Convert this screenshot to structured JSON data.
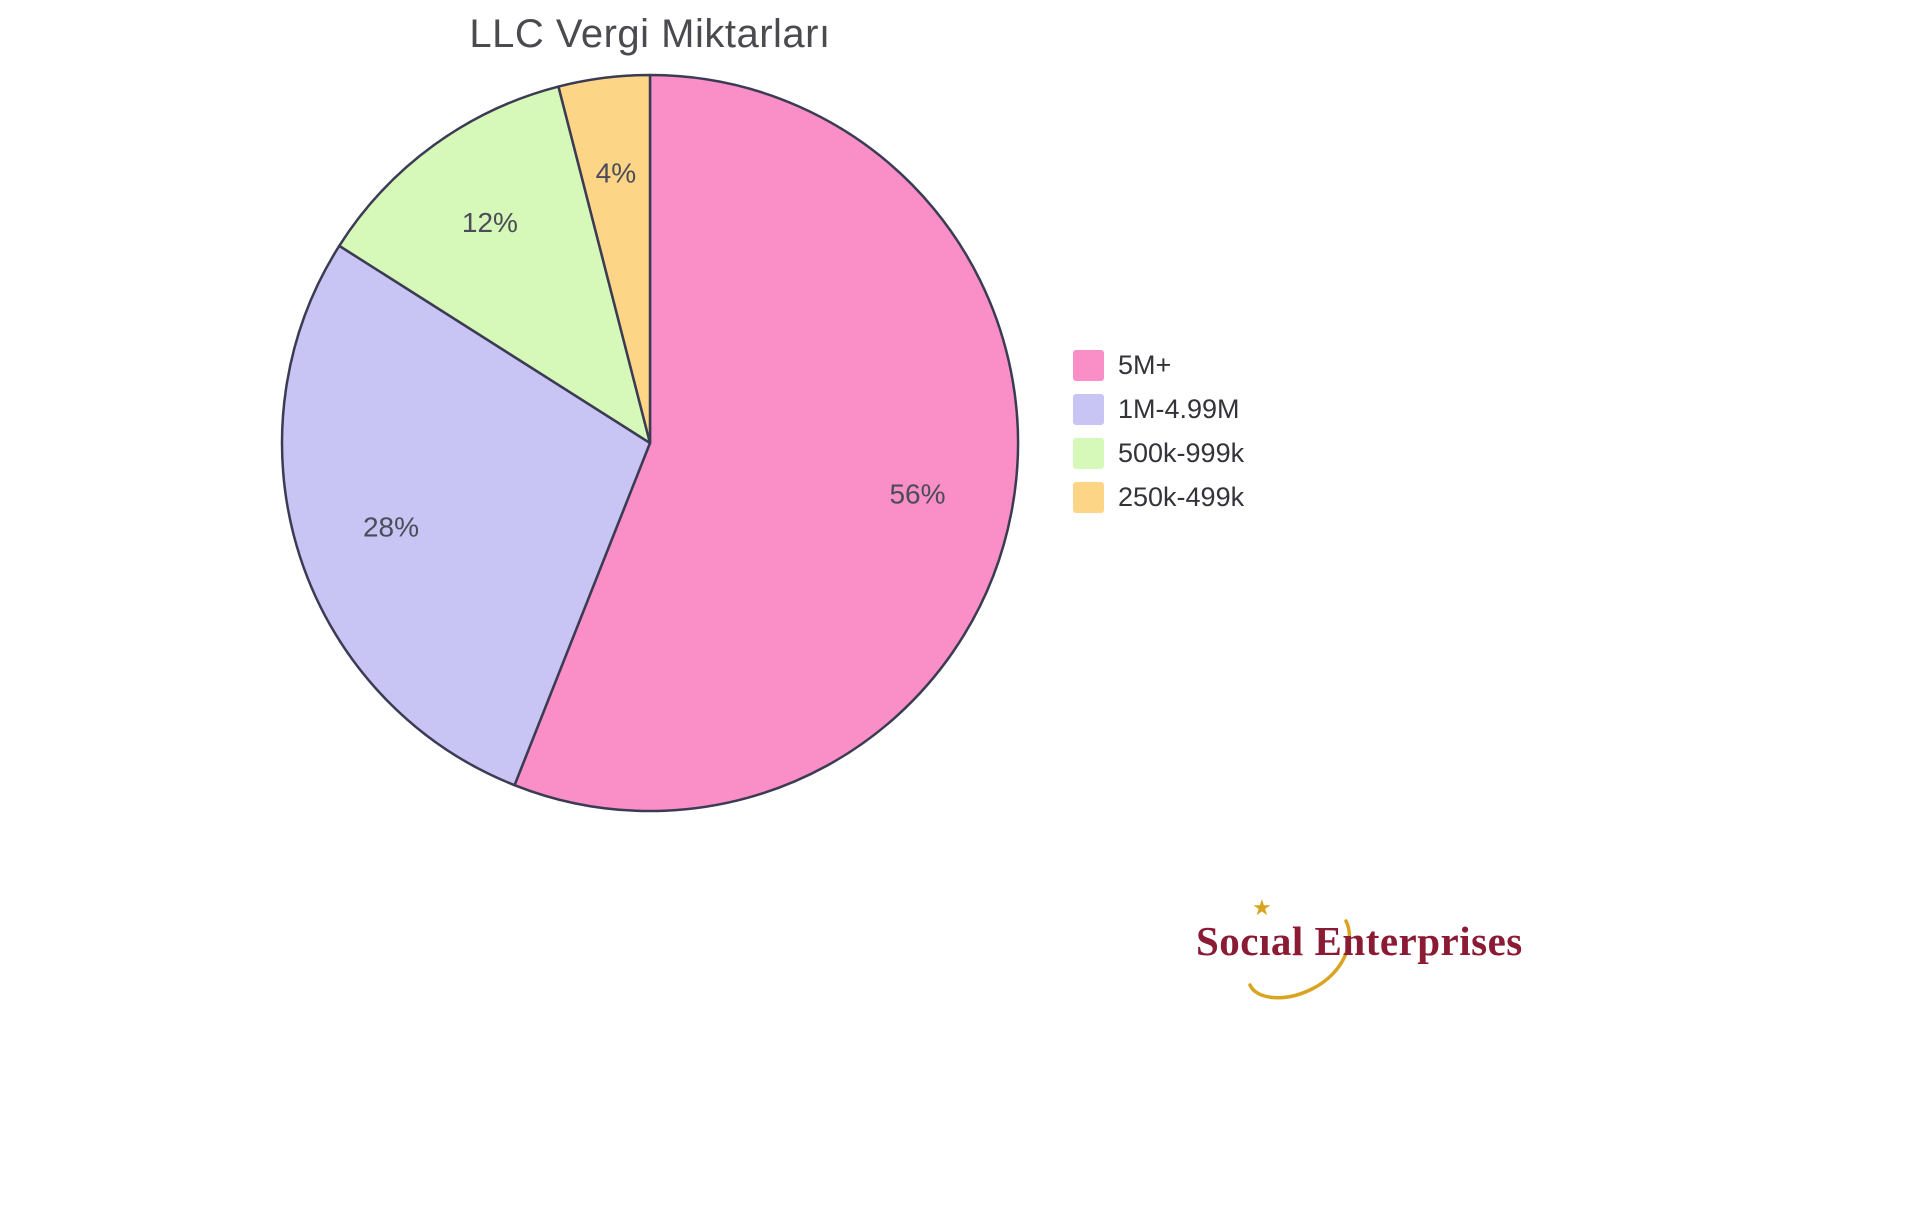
{
  "chart_data": {
    "type": "pie",
    "title": "LLC Vergi Miktarları",
    "labels": [
      "5M+",
      "1M-4.99M",
      "500k-999k",
      "250k-499k"
    ],
    "values": [
      56,
      28,
      12,
      4
    ],
    "percent_labels": [
      "56%",
      "28%",
      "12%",
      "4%"
    ],
    "colors": [
      "#F98FC6",
      "#C8C5F4",
      "#D6F8B8",
      "#FCD587"
    ],
    "stroke_color": "#3b3b54",
    "start_angle": "top",
    "direction": "clockwise",
    "legend_position": "right",
    "legend_entries": [
      "5M+",
      "1M-4.99M",
      "500k-999k",
      "250k-499k"
    ]
  },
  "branding": {
    "logo_pre": "Soc",
    "logo_i": "ı",
    "logo_post": "al Enterprises",
    "logo_full_text": "Social Enterprises",
    "logo_color": "#8b1a35",
    "accent_color": "#d9a520",
    "star_glyph": "★"
  }
}
